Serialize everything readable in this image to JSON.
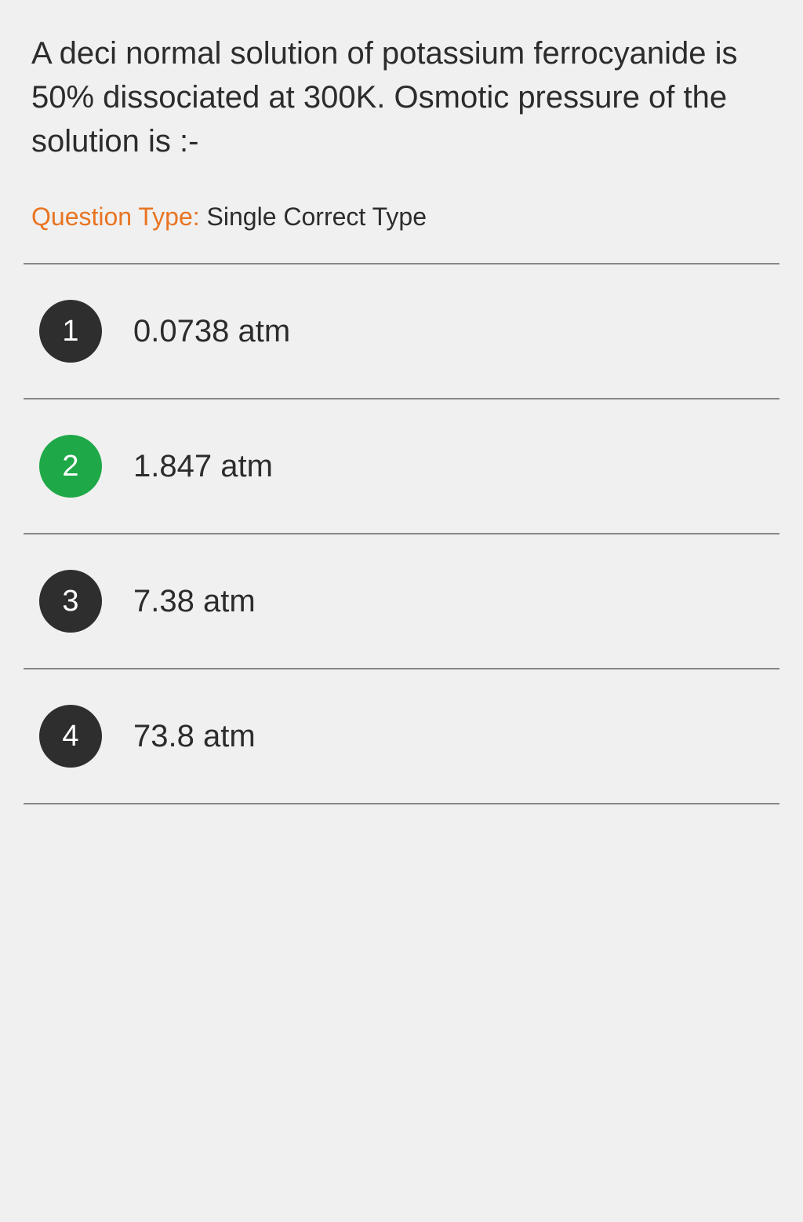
{
  "question": {
    "text": "A deci normal solution of potassium ferrocyanide is 50% dissociated at 300K. Osmotic pressure of the solution is :-",
    "type_label": "Question Type:",
    "type_value": "Single Correct Type"
  },
  "options": [
    {
      "number": "1",
      "text": "0.0738 atm",
      "selected": false
    },
    {
      "number": "2",
      "text": "1.847 atm",
      "selected": true
    },
    {
      "number": "3",
      "text": "7.38 atm",
      "selected": false
    },
    {
      "number": "4",
      "text": "73.8 atm",
      "selected": false
    }
  ],
  "styles": {
    "badge_default_bg": "#2e2e2e",
    "badge_selected_bg": "#1fa848",
    "badge_text_color": "#ffffff",
    "question_type_label_color": "#e87422",
    "text_color": "#2c2c2c",
    "background_color": "#f0f0f0",
    "divider_color": "#888888",
    "question_fontsize": 40,
    "option_fontsize": 40,
    "type_fontsize": 32,
    "badge_diameter": 80
  }
}
